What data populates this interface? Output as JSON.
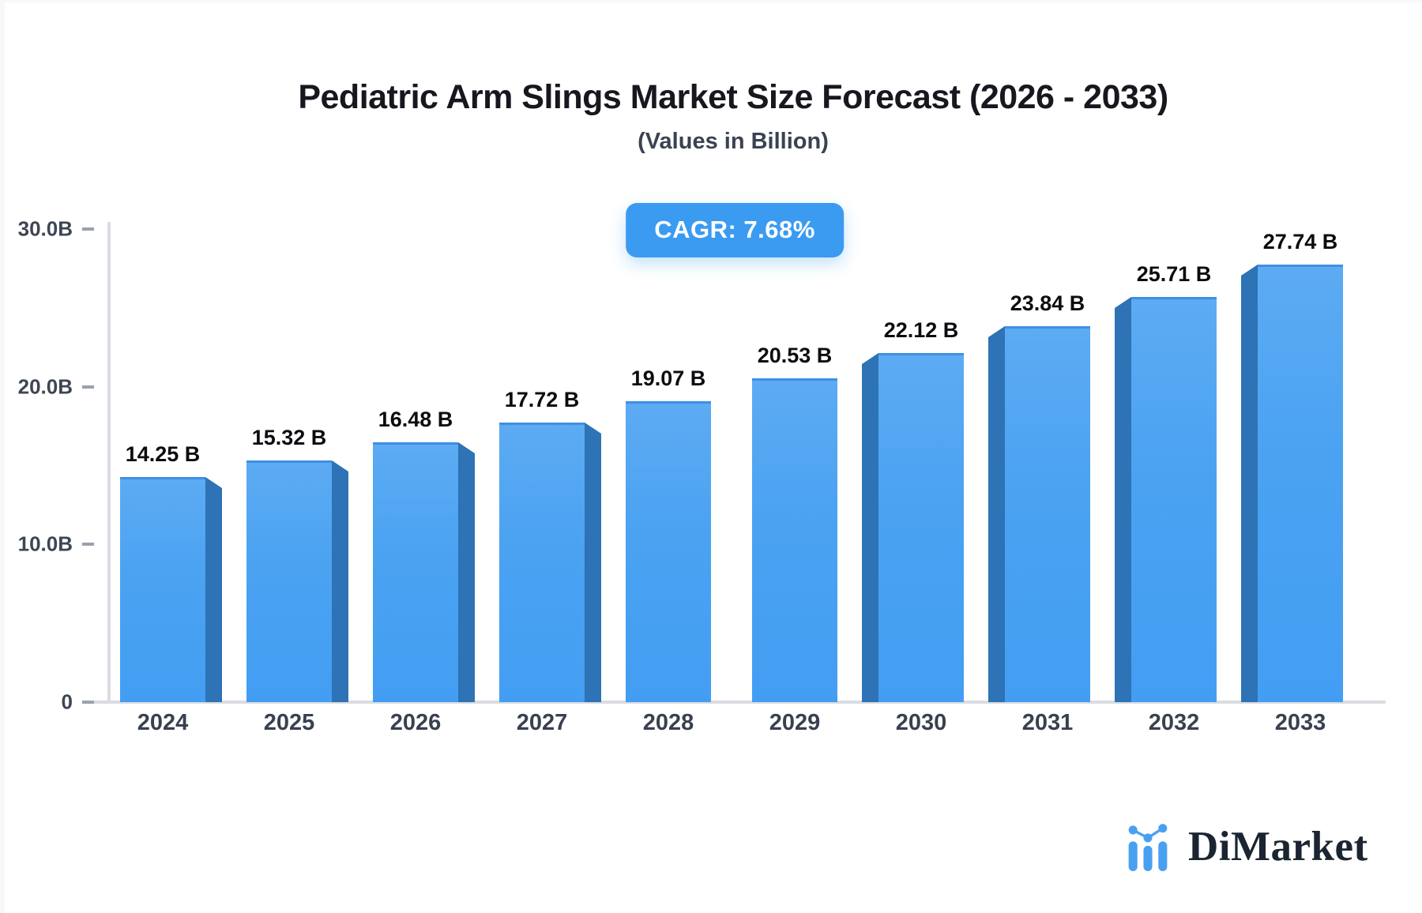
{
  "header": {
    "title": "Pediatric Arm Slings Market Size Forecast (2026 - 2033)",
    "subtitle": "(Values in Billion)",
    "cagr_label": "CAGR: 7.68%"
  },
  "chart_data": {
    "type": "bar",
    "title": "Pediatric Arm Slings Market Size Forecast (2026 - 2033)",
    "subtitle": "(Values in Billion)",
    "cagr_percent": 7.68,
    "categories": [
      "2024",
      "2025",
      "2026",
      "2027",
      "2028",
      "2029",
      "2030",
      "2031",
      "2032",
      "2033"
    ],
    "values": [
      14.25,
      15.32,
      16.48,
      17.72,
      19.07,
      20.53,
      22.12,
      23.84,
      25.71,
      27.74
    ],
    "labels": [
      "14.25 B",
      "15.32 B",
      "16.48 B",
      "17.72 B",
      "19.07 B",
      "20.53 B",
      "22.12 B",
      "23.84 B",
      "25.71 B",
      "27.74 B"
    ],
    "xlabel": "",
    "ylabel": "",
    "ylim": [
      0,
      30
    ],
    "grid": false,
    "legend": "none",
    "yticks": [
      {
        "value": 30,
        "label": "30.0B"
      },
      {
        "value": 20,
        "label": "20.0B"
      },
      {
        "value": 10,
        "label": "10.0B"
      },
      {
        "value": 0,
        "label": "0"
      }
    ],
    "colors": {
      "bar_face": "#4aa2f1",
      "bar_face_top_edge": "#3e90e3",
      "bar_side_shade": "#2d73b5",
      "axis_line": "#d9dce1",
      "tick_dash": "#9aa1ac",
      "accent_badge": "#3b9bf1",
      "title_text": "#17171f",
      "value_text": "#0c0c10"
    }
  },
  "branding": {
    "logo_text": "DiMarket",
    "logo_icon": "mini-bar-chart-icon",
    "logo_color": "#4aa0f0",
    "logo_text_color": "#1b2531"
  }
}
